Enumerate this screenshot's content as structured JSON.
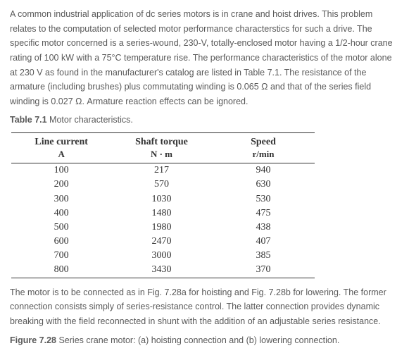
{
  "paragraph1": "A common industrial application of dc series motors is in crane and hoist drives. This problem relates to the computation of selected motor performance characterstics for such a drive. The specific motor concerned is a series-wound, 230-V, totally-enclosed motor having a 1/2-hour crane rating of 100 kW with a 75°C temperature rise. The performance characteristics of the motor alone at 230 V as found in the manufacturer's catalog are listed in Table 7.1. The resistance of the armature (including brushes) plus commutating winding is 0.065 Ω and that of the series field winding is 0.027 Ω. Armature reaction effects can be ignored.",
  "table_caption_bold": "Table 7.1",
  "table_caption_rest": " Motor characteristics.",
  "table": {
    "columns": [
      {
        "title": "Line current",
        "unit": "A"
      },
      {
        "title": "Shaft torque",
        "unit": "N · m"
      },
      {
        "title": "Speed",
        "unit": "r/min"
      }
    ],
    "rows": [
      [
        "100",
        "217",
        "940"
      ],
      [
        "200",
        "570",
        "630"
      ],
      [
        "300",
        "1030",
        "530"
      ],
      [
        "400",
        "1480",
        "475"
      ],
      [
        "500",
        "1980",
        "438"
      ],
      [
        "600",
        "2470",
        "407"
      ],
      [
        "700",
        "3000",
        "385"
      ],
      [
        "800",
        "3430",
        "370"
      ]
    ]
  },
  "paragraph2": "The motor is to be connected as in Fig. 7.28a for hoisting and Fig. 7.28b for lowering. The former connection consists simply of series-resistance control. The latter connection provides dynamic breaking with the field reconnected in shunt with the addition of an adjustable series resistance.",
  "figure_caption_bold": "Figure 7.28",
  "figure_caption_rest": " Series crane motor: (a) hoisting connection and (b) lowering connection."
}
